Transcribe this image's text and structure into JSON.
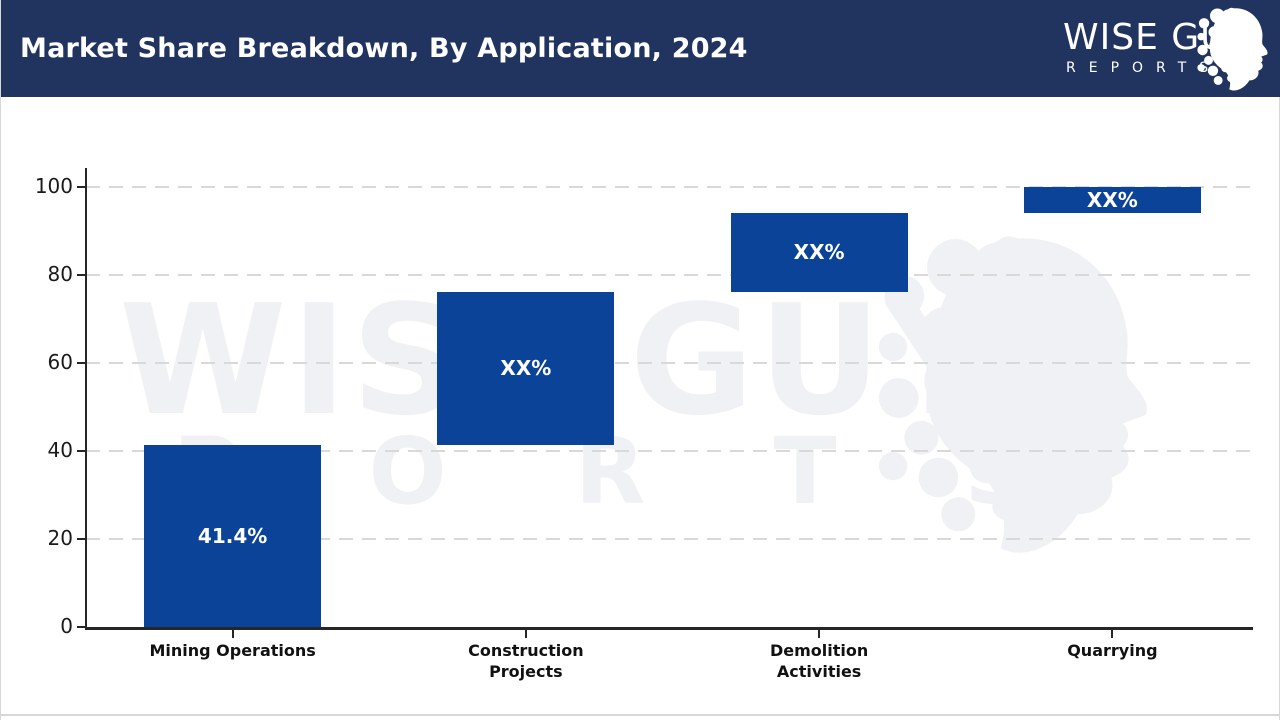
{
  "header": {
    "title": "Market Share Breakdown, By Application, 2024",
    "logo": {
      "line1": "WISE GUY",
      "line2": "REPORTS"
    }
  },
  "watermark": {
    "line1": "WISE GUY",
    "line2": "REPORTS"
  },
  "colors": {
    "header_bg": "#21345f",
    "bar": "#0a4397",
    "grid": "#d9d9d9",
    "axis": "#262626",
    "watermark": "#f0f1f5",
    "value_label": "#ffffff"
  },
  "chart_data": {
    "type": "bar",
    "subtype": "waterfall",
    "title": "Market Share Breakdown, By Application, 2024",
    "xlabel": "",
    "ylabel": "",
    "categories": [
      "Mining Operations",
      "Construction Projects",
      "Demolition Activities",
      "Quarrying"
    ],
    "category_lines": [
      [
        "Mining Operations"
      ],
      [
        "Construction",
        "Projects"
      ],
      [
        "Demolition",
        "Activities"
      ],
      [
        "Quarrying"
      ]
    ],
    "bars": [
      {
        "category": "Mining Operations",
        "start": 0,
        "end": 41.4,
        "label": "41.4%"
      },
      {
        "category": "Construction Projects",
        "start": 41.4,
        "end": 76.1,
        "label": "XX%"
      },
      {
        "category": "Demolition Activities",
        "start": 76.1,
        "end": 94.2,
        "label": "XX%"
      },
      {
        "category": "Quarrying",
        "start": 94.2,
        "end": 100,
        "label": "XX%"
      }
    ],
    "ylim": [
      0,
      100
    ],
    "yticks": [
      0,
      20,
      40,
      60,
      80,
      100
    ],
    "grid": "horizontal-dashed",
    "legend": "none"
  }
}
